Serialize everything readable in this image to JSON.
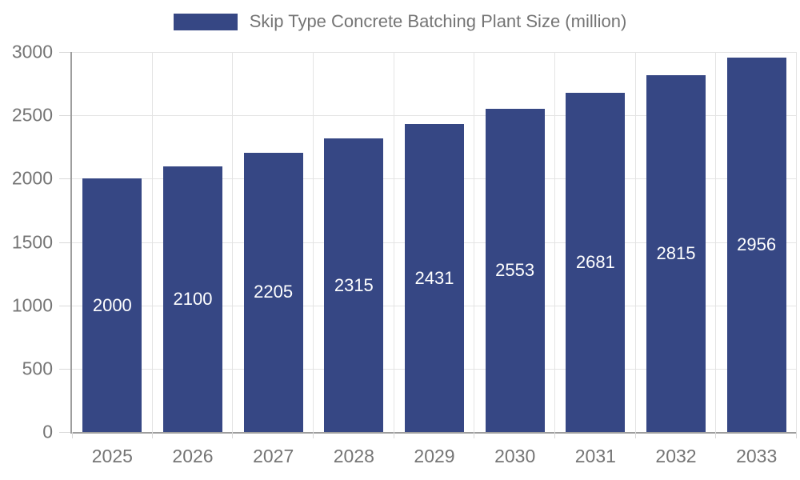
{
  "legend": {
    "label": "Skip Type Concrete Batching Plant Size (million)"
  },
  "chart_data": {
    "type": "bar",
    "title": "Skip Type Concrete Batching Plant Size (million)",
    "categories": [
      "2025",
      "2026",
      "2027",
      "2028",
      "2029",
      "2030",
      "2031",
      "2032",
      "2033"
    ],
    "series": [
      {
        "name": "Skip Type Concrete Batching Plant Size (million)",
        "values": [
          2000,
          2100,
          2205,
          2315,
          2431,
          2553,
          2681,
          2815,
          2956
        ]
      }
    ],
    "xlabel": "",
    "ylabel": "",
    "ylim": [
      0,
      3000
    ],
    "y_ticks": [
      0,
      500,
      1000,
      1500,
      2000,
      2500,
      3000
    ],
    "grid": true,
    "legend_position": "top",
    "value_labels": "inside-center",
    "colors": {
      "bar": "#364784",
      "bar_label": "#ffffff",
      "axis_line": "#9e9e9e",
      "gridline": "#e3e3e3",
      "tick": "#d9d9d9",
      "text": "#757575",
      "background": "#ffffff"
    }
  }
}
